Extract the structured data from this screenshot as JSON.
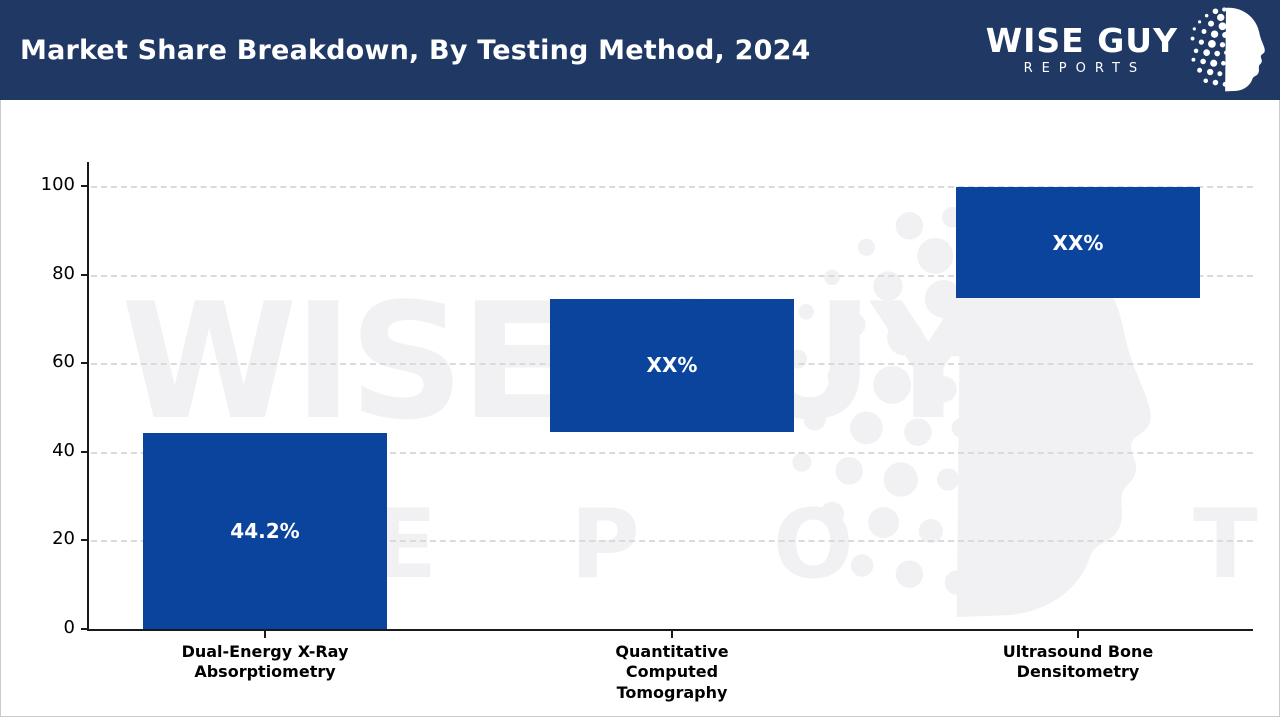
{
  "header": {
    "title": "Market Share Breakdown, By Testing Method, 2024",
    "logo": {
      "line1": "WISE GUY",
      "line2": "REPORTS"
    }
  },
  "watermark": {
    "line1": "WISE GUY",
    "line2": "R E P O R T S"
  },
  "chart_data": {
    "type": "bar",
    "subtype": "floating-stacked-waterfall",
    "title": "Market Share Breakdown, By Testing Method, 2024",
    "categories": [
      "Dual-Energy X-Ray\nAbsorptiometry",
      "Quantitative\nComputed\nTomography",
      "Ultrasound Bone\nDensitometry"
    ],
    "segments": [
      {
        "category": "Dual-Energy X-Ray Absorptiometry",
        "start": 0,
        "end": 44.2,
        "label": "44.2%"
      },
      {
        "category": "Quantitative Computed Tomography",
        "start": 44.5,
        "end": 74.5,
        "label": "XX%"
      },
      {
        "category": "Ultrasound Bone Densitometry",
        "start": 74.7,
        "end": 99.7,
        "label": "XX%"
      }
    ],
    "xlabel": "",
    "ylabel": "",
    "ylim": [
      0,
      100
    ],
    "yticks": [
      0,
      20,
      40,
      60,
      80,
      100
    ],
    "grid": "horizontal-dashed",
    "legend": "none",
    "colors": {
      "header_bg": "#1f3864",
      "bar": "#0a449d",
      "bar_label": "#ffffff",
      "grid": "#dadada",
      "axis": "#1a1a1a",
      "watermark": "#f1f1f4",
      "text": "#000000"
    }
  }
}
